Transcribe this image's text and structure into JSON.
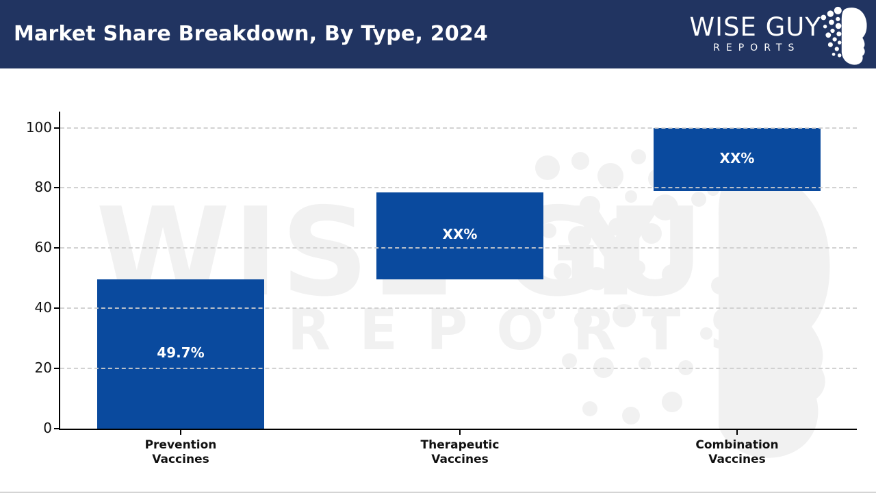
{
  "header": {
    "title": "Market Share Breakdown, By Type, 2024",
    "bg_color": "#213461",
    "logo": {
      "line1": "WISE GUY",
      "line2": "REPORTS"
    }
  },
  "watermark": {
    "line1": "WISE GU",
    "line1b": "Y",
    "line2": "REPORTS",
    "color": "#f1f1f1"
  },
  "chart_data": {
    "type": "bar",
    "subtype": "floating-segment-breakdown",
    "title": "Market Share Breakdown, By Type, 2024",
    "xlabel": "",
    "ylabel": "",
    "categories": [
      {
        "name": "Prevention Vaccines",
        "lines": [
          "Prevention",
          "Vaccines"
        ]
      },
      {
        "name": "Therapeutic Vaccines",
        "lines": [
          "Therapeutic",
          "Vaccines"
        ]
      },
      {
        "name": "Combination Vaccines",
        "lines": [
          "Combination",
          "Vaccines"
        ]
      }
    ],
    "segments": [
      {
        "category": "Prevention Vaccines",
        "start": 0,
        "end": 49.7,
        "label": "49.7%"
      },
      {
        "category": "Therapeutic Vaccines",
        "start": 49.7,
        "end": 78.5,
        "label": "XX%"
      },
      {
        "category": "Combination Vaccines",
        "start": 78.9,
        "end": 100,
        "label": "XX%"
      }
    ],
    "ylim": [
      0,
      100
    ],
    "yticks": [
      0,
      20,
      40,
      60,
      80,
      100
    ],
    "grid": "horizontal-dashed-over-bars",
    "legend": "none",
    "bar_color": "#0a4a9e",
    "bar_label_color": "#ffffff",
    "grid_color": "#cdcdcd",
    "axis_color": "#000000"
  }
}
